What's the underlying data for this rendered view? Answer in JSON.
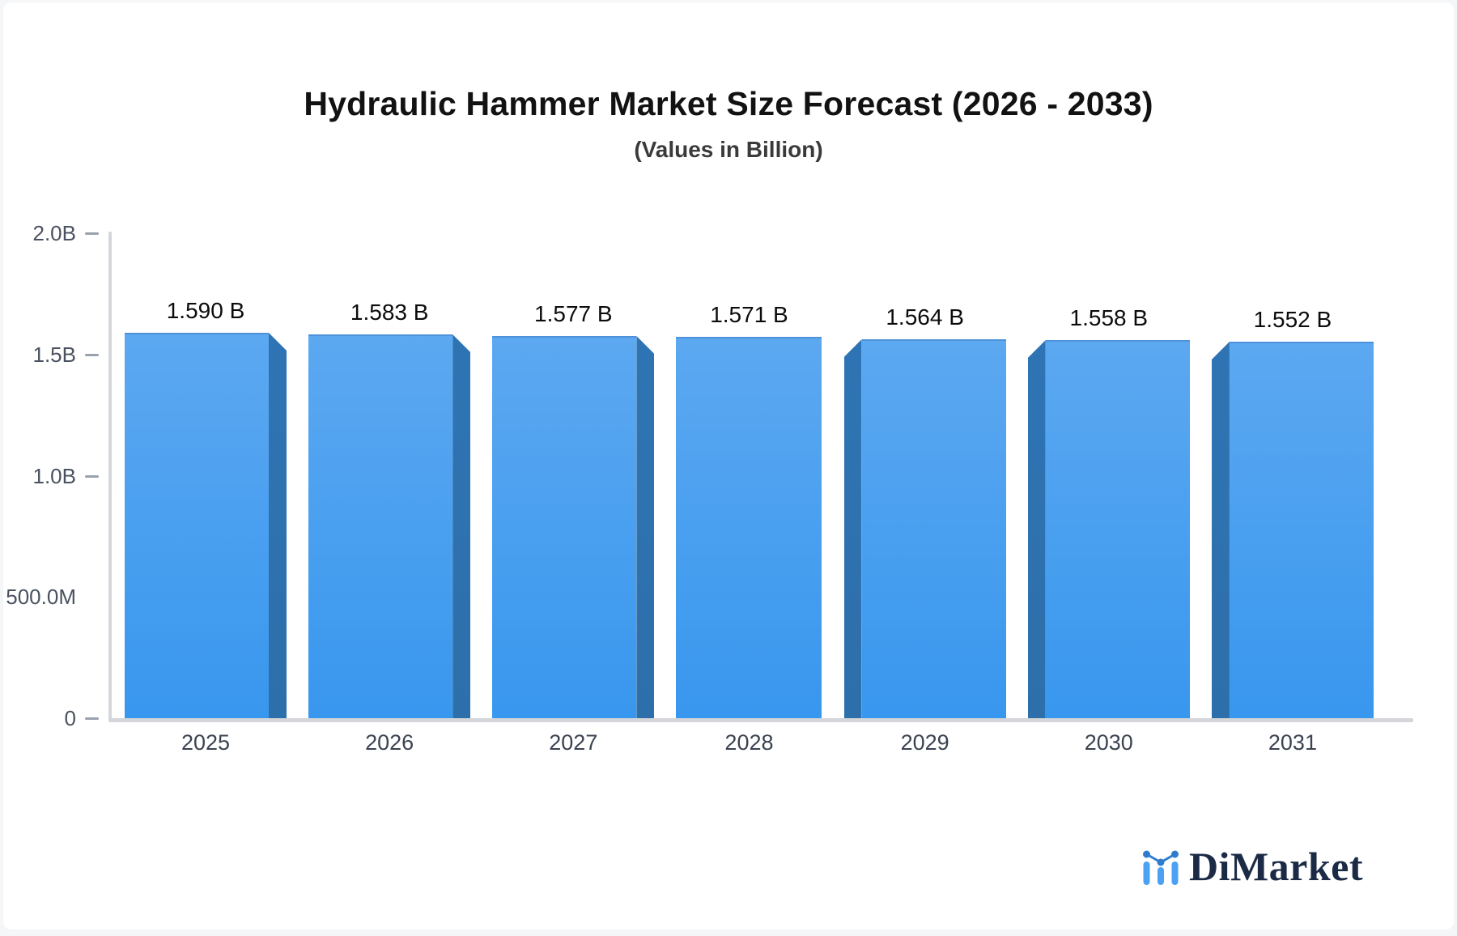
{
  "page": {
    "background": "#f5f6f8",
    "card_background": "#ffffff"
  },
  "header": {
    "title": "Hydraulic Hammer Market Size Forecast (2026 - 2033)",
    "subtitle": "(Values in Billion)"
  },
  "chart_data": {
    "type": "bar",
    "title": "Hydraulic Hammer Market Size Forecast (2026 - 2033)",
    "subtitle": "(Values in Billion)",
    "unit": "B",
    "categories": [
      "2025",
      "2026",
      "2027",
      "2028",
      "2029",
      "2030",
      "2031"
    ],
    "values": [
      1.59,
      1.583,
      1.577,
      1.571,
      1.564,
      1.558,
      1.552
    ],
    "value_labels": [
      "1.590 B",
      "1.583 B",
      "1.577 B",
      "1.571 B",
      "1.564 B",
      "1.558 B",
      "1.552 B"
    ],
    "ylim": [
      0,
      2.0
    ],
    "yticks": [
      {
        "label": "2.0B",
        "value": 2.0,
        "dash": true
      },
      {
        "label": "1.5B",
        "value": 1.5,
        "dash": true
      },
      {
        "label": "1.0B",
        "value": 1.0,
        "dash": true
      },
      {
        "label": "500.0M",
        "value": 0.5,
        "dash": false
      },
      {
        "label": "0",
        "value": 0.0,
        "dash": true
      }
    ],
    "grid": false,
    "legend": "none",
    "bar_style": "3d-beveled",
    "colors": {
      "face_top": "#5CA8F1",
      "face_bottom": "#3897EE",
      "face_edge": "#4E93DA",
      "side": "#2E74B4",
      "side_bottom": "#2D6FAA",
      "axis": "#D5D6D9",
      "tick": "#99A1AC",
      "axis_label": "#4A5260",
      "category_label": "#3B4350",
      "value_label": "#0C0C0C"
    }
  },
  "branding": {
    "logo_text": "DiMarket",
    "logo_icon": "dimarket-bar-chart-logo-icon",
    "logo_blue": "#4BA1F3",
    "logo_dark_blue": "#2F7CCE",
    "logo_text_color": "#1B2B45"
  }
}
